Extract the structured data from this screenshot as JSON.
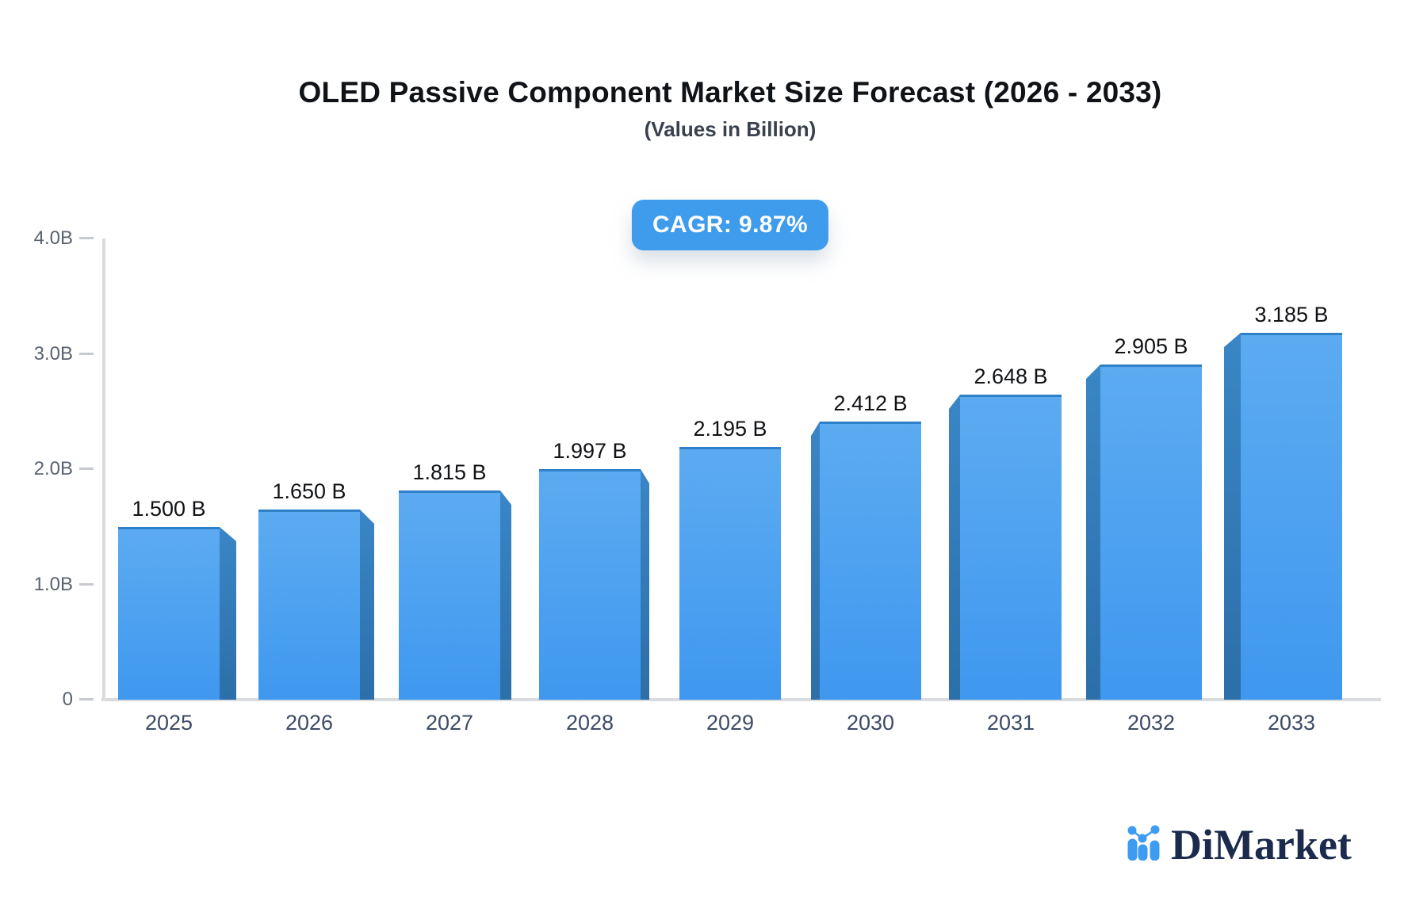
{
  "header": {
    "title": "OLED Passive Component Market Size Forecast (2026 - 2033)",
    "subtitle": "(Values in Billion)"
  },
  "badge": {
    "label": "CAGR: 9.87%",
    "bg": "#3f9ced",
    "text_color": "#ffffff"
  },
  "chart_data": {
    "type": "bar",
    "title": "OLED Passive Component Market Size Forecast (2026 - 2033)",
    "subtitle": "(Values in Billion)",
    "xlabel": "",
    "ylabel": "",
    "categories": [
      "2025",
      "2026",
      "2027",
      "2028",
      "2029",
      "2030",
      "2031",
      "2032",
      "2033"
    ],
    "values": [
      1.5,
      1.65,
      1.815,
      1.997,
      2.195,
      2.412,
      2.648,
      2.905,
      3.185
    ],
    "bar_labels": [
      "1.500 B",
      "1.650 B",
      "1.815 B",
      "1.997 B",
      "2.195 B",
      "2.412 B",
      "2.648 B",
      "2.905 B",
      "3.185 B"
    ],
    "ylim": [
      0,
      4
    ],
    "yticks": [
      {
        "value": 0,
        "label": "0"
      },
      {
        "value": 1,
        "label": "1.0B"
      },
      {
        "value": 2,
        "label": "2.0B"
      },
      {
        "value": 3,
        "label": "3.0B"
      },
      {
        "value": 4,
        "label": "4.0B"
      }
    ],
    "grid": false,
    "legend": "none",
    "colors": {
      "bar_top": "#5cabf1",
      "bar_bottom": "#3f98ef",
      "bar_top_edge": "#2e80c9",
      "bar_side_top": "#3a86c6",
      "bar_side_bottom": "#2c6fa9",
      "axis": "#d9dbdf",
      "tick": "#c6c9ce"
    }
  },
  "logo": {
    "text": "DiMarket",
    "icon": "mini-bar-chart-icon",
    "icon_color": "#3d9bf2",
    "text_color": "#1c2a4e"
  }
}
